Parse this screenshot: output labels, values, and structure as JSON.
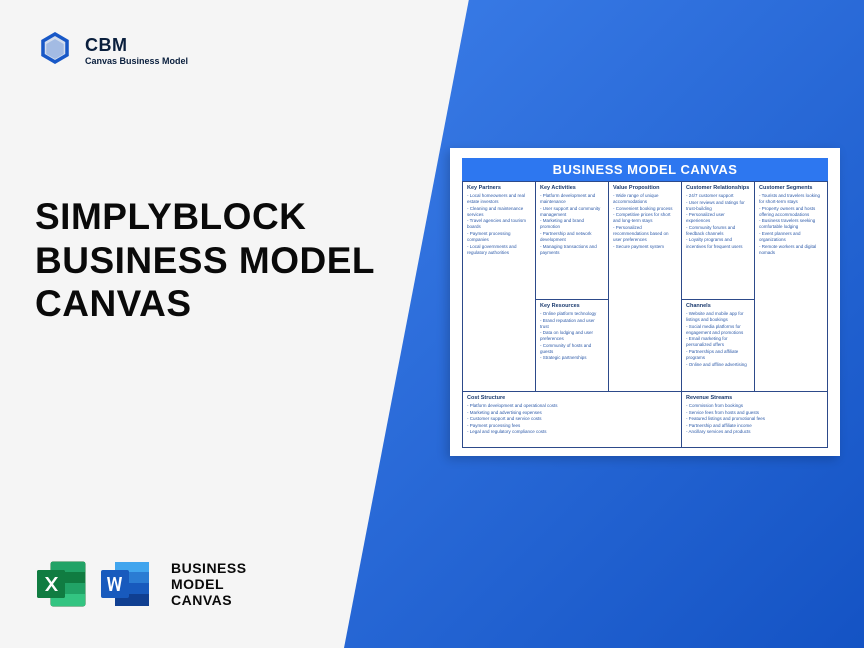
{
  "logo": {
    "title": "CBM",
    "subtitle": "Canvas Business Model"
  },
  "mainTitle": {
    "line1": "SIMPLYBLOCK",
    "line2": "BUSINESS MODEL",
    "line3": "CANVAS"
  },
  "bottom": {
    "line1": "BUSINESS",
    "line2": "MODEL",
    "line3": "CANVAS"
  },
  "canvas": {
    "title": "BUSINESS MODEL CANVAS",
    "keyPartners": {
      "label": "Key Partners",
      "items": [
        "- Local homeowners and real estate investors",
        "- Cleaning and maintenance services",
        "- Travel agencies and tourism boards",
        "- Payment processing companies",
        "- Local governments and regulatory authorities"
      ]
    },
    "keyActivities": {
      "label": "Key Activities",
      "items": [
        "- Platform development and maintenance",
        "- User support and community management",
        "- Marketing and brand promotion",
        "- Partnership and network development",
        "- Managing transactions and payments"
      ]
    },
    "valueProp": {
      "label": "Value Proposition",
      "items": [
        "- Wide range of unique accommodations",
        "- Convenient booking process",
        "- Competitive prices for short and long-term stays",
        "- Personalized recommendations based on user preferences",
        "- Secure payment system"
      ]
    },
    "customerRel": {
      "label": "Customer Relationships",
      "items": [
        "- 24/7 customer support",
        "- User reviews and ratings for trust-building",
        "- Personalized user experiences",
        "- Community forums and feedback channels",
        "- Loyalty programs and incentives for frequent users"
      ]
    },
    "customerSeg": {
      "label": "Customer Segments",
      "items": [
        "- Tourists and travelers looking for short-term stays",
        "- Property owners and hosts offering accommodations",
        "- Business travelers seeking comfortable lodging",
        "- Event planners and organizations",
        "- Remote workers and digital nomads"
      ]
    },
    "keyResources": {
      "label": "Key Resources",
      "items": [
        "- Online platform technology",
        "- Brand reputation and user trust",
        "- Data on lodging and user preferences",
        "- Community of hosts and guests",
        "- Strategic partnerships"
      ]
    },
    "channels": {
      "label": "Channels",
      "items": [
        "- Website and mobile app for listings and bookings",
        "- Social media platforms for engagement and promotions",
        "- Email marketing for personalized offers",
        "- Partnerships and affiliate programs",
        "- Online and offline advertising"
      ]
    },
    "costStructure": {
      "label": "Cost Structure",
      "items": [
        "- Platform development and operational costs",
        "- Marketing and advertising expenses",
        "- Customer support and service costs",
        "- Payment processing fees",
        "- Legal and regulatory compliance costs"
      ]
    },
    "revenueStreams": {
      "label": "Revenue Streams",
      "items": [
        "- Commission from bookings",
        "- Service fees from hosts and guests",
        "- Featured listings and promotional fees",
        "- Partnership and affiliate income",
        "- Ancillary services and products"
      ]
    }
  },
  "colors": {
    "blueGradStart": "#3b7de8",
    "blueGradEnd": "#1453c4",
    "canvasHeader": "#2d77f0",
    "excelGreen": "#1a7e3e",
    "wordBlue": "#2b5797"
  }
}
